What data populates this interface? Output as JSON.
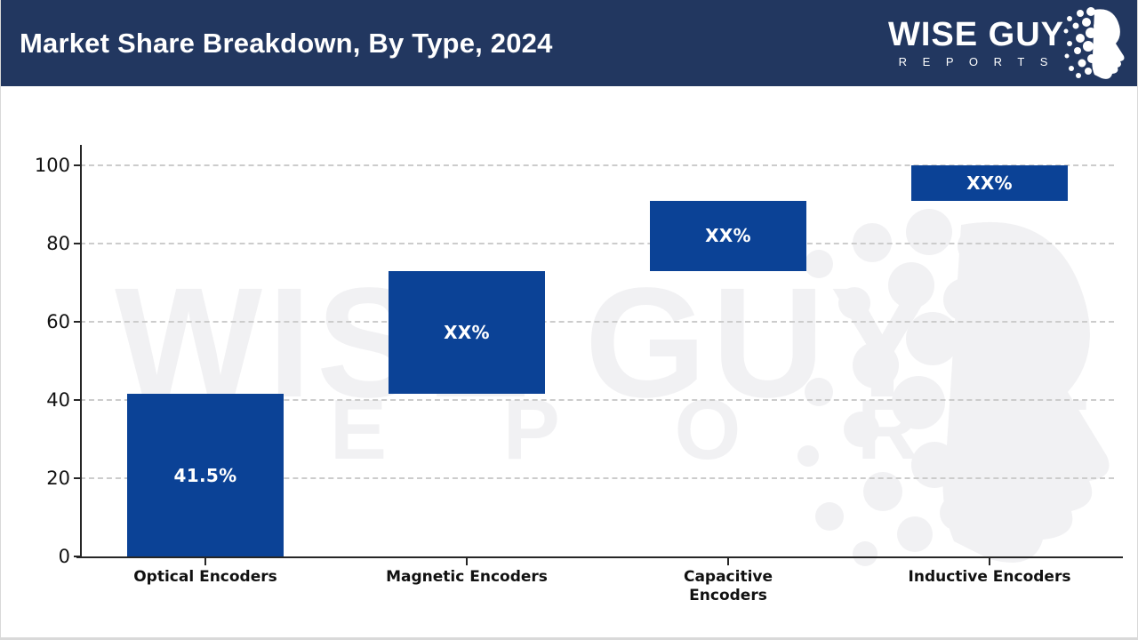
{
  "header": {
    "title": "Market Share Breakdown, By Type, 2024",
    "logo": {
      "line1": "WISE GUY",
      "line2": "R E P O R T S"
    }
  },
  "watermark": {
    "line1": "WISE GUY",
    "line2": "R E P O R T S"
  },
  "chart_data": {
    "type": "bar",
    "variant": "waterfall-segments",
    "title": "Market Share Breakdown, By Type, 2024",
    "categories": [
      "Optical Encoders",
      "Magnetic Encoders",
      "Capacitive Encoders",
      "Inductive Encoders"
    ],
    "category_display": [
      "Optical Encoders",
      "Magnetic Encoders",
      "Capacitive\nEncoders",
      "Inductive Encoders"
    ],
    "segments": [
      {
        "category": "Optical Encoders",
        "start": 0,
        "end": 41.5,
        "label": "41.5%"
      },
      {
        "category": "Magnetic Encoders",
        "start": 41.5,
        "end": 73,
        "label": "XX%"
      },
      {
        "category": "Capacitive Encoders",
        "start": 73,
        "end": 91,
        "label": "XX%"
      },
      {
        "category": "Inductive Encoders",
        "start": 91,
        "end": 100,
        "label": "XX%"
      }
    ],
    "y_ticks": [
      0,
      20,
      40,
      60,
      80,
      100
    ],
    "ylim": [
      0,
      105
    ],
    "xlabel": "",
    "ylabel": "",
    "grid": "horizontal-dashed",
    "legend": "none",
    "bar_color": "#0b4296",
    "bar_label_color": "#ffffff",
    "axis_color": "#262626",
    "grid_color": "#cccccc",
    "header_bg": "#223760"
  }
}
